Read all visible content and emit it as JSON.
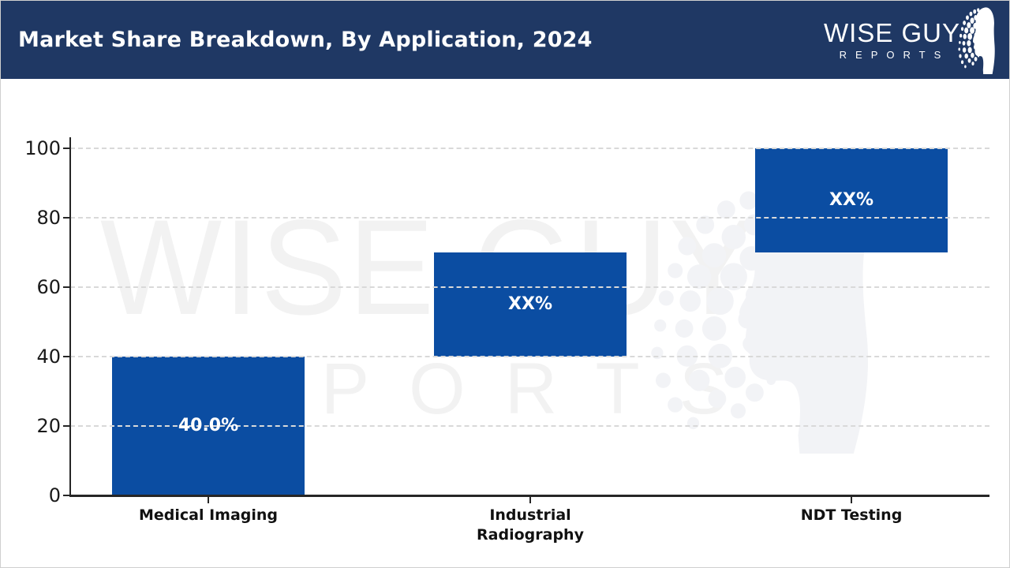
{
  "header": {
    "title": "Market Share Breakdown, By Application, 2024",
    "logo": {
      "name": "WISE GUY",
      "sub": "REPORTS"
    }
  },
  "watermark": {
    "line1": "WISE GUY",
    "line2": "REPORTS"
  },
  "chart_data": {
    "type": "bar",
    "variant": "floating-range-bars (waterfall style)",
    "title": "Market Share Breakdown, By Application, 2024",
    "categories": [
      "Medical Imaging",
      "Industrial Radiography",
      "NDT Testing"
    ],
    "bars": [
      {
        "category": "Medical Imaging",
        "start": 0,
        "end": 40,
        "label": "40.0%"
      },
      {
        "category": "Industrial Radiography",
        "start": 40,
        "end": 70,
        "label": "XX%"
      },
      {
        "category": "NDT Testing",
        "start": 70,
        "end": 100,
        "label": "XX%"
      }
    ],
    "ylim": [
      0,
      100
    ],
    "yticks": [
      0,
      20,
      40,
      60,
      80,
      100
    ],
    "xlabel": "",
    "ylabel": "",
    "grid": "horizontal dashed",
    "legend": null,
    "bar_color": "#0b4da2",
    "bar_label_color": "#ffffff"
  },
  "colors": {
    "header_bg": "#1f3864",
    "bar": "#0b4da2",
    "grid": "#d9d9d9",
    "axis": "#262626",
    "watermark": "#f2f2f2"
  }
}
